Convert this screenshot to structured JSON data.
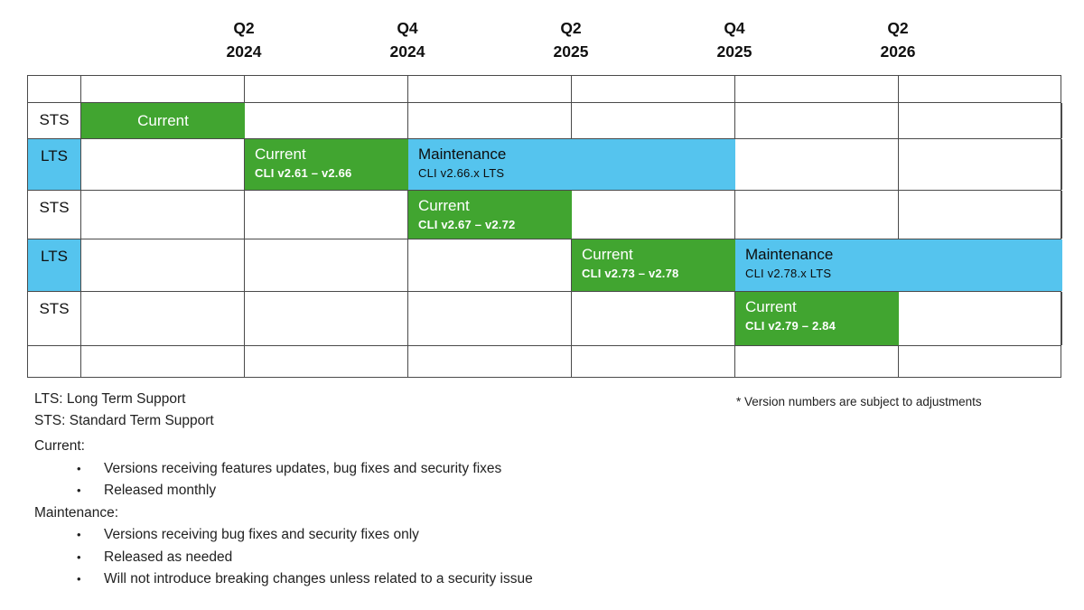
{
  "colors": {
    "current_green": "#41A530",
    "maintenance_blue": "#55C4EE",
    "grid_line": "#4a4a4a"
  },
  "timeline": {
    "quarters": [
      {
        "quarter": "Q2",
        "year": "2024"
      },
      {
        "quarter": "Q4",
        "year": "2024"
      },
      {
        "quarter": "Q2",
        "year": "2025"
      },
      {
        "quarter": "Q4",
        "year": "2025"
      },
      {
        "quarter": "Q2",
        "year": "2026"
      }
    ],
    "rows": [
      {
        "label": "",
        "kind": "spacer",
        "bars": []
      },
      {
        "label": "STS",
        "kind": "sts",
        "bars": [
          {
            "title": "Current",
            "subtitle": "",
            "phase": "current",
            "col_start": 1,
            "col_span": 1,
            "align": "center"
          }
        ]
      },
      {
        "label": "LTS",
        "kind": "lts",
        "bars": [
          {
            "title": "Current",
            "subtitle": "CLI v2.61 – v2.66",
            "phase": "current",
            "col_start": 2,
            "col_span": 1,
            "align": "left"
          },
          {
            "title": "Maintenance",
            "subtitle": "CLI v2.66.x LTS",
            "phase": "maintenance",
            "col_start": 3,
            "col_span": 2,
            "align": "left"
          }
        ]
      },
      {
        "label": "STS",
        "kind": "sts",
        "bars": [
          {
            "title": "Current",
            "subtitle": "CLI v2.67 – v2.72",
            "phase": "current",
            "col_start": 3,
            "col_span": 1,
            "align": "left"
          }
        ]
      },
      {
        "label": "LTS",
        "kind": "lts",
        "bars": [
          {
            "title": "Current",
            "subtitle": "CLI v2.73 – v2.78",
            "phase": "current",
            "col_start": 4,
            "col_span": 1,
            "align": "left"
          },
          {
            "title": "Maintenance",
            "subtitle": "CLI v2.78.x LTS",
            "phase": "maintenance",
            "col_start": 5,
            "col_span": 2,
            "align": "left"
          }
        ]
      },
      {
        "label": "STS",
        "kind": "sts",
        "bars": [
          {
            "title": "Current",
            "subtitle": "CLI v2.79 – 2.84",
            "phase": "current",
            "col_start": 5,
            "col_span": 1,
            "align": "left"
          }
        ]
      },
      {
        "label": "",
        "kind": "spacer",
        "bars": []
      }
    ]
  },
  "legend": {
    "lts_definition": "LTS: Long Term Support",
    "sts_definition": "STS: Standard Term Support",
    "footnote": "* Version numbers are subject to adjustments",
    "sections": [
      {
        "heading": "Current:",
        "bullets": [
          "Versions receiving features updates, bug fixes and security fixes",
          "Released monthly"
        ]
      },
      {
        "heading": "Maintenance:",
        "bullets": [
          "Versions receiving bug fixes and security fixes only",
          "Released as needed",
          "Will not introduce breaking changes unless related to a security issue"
        ]
      }
    ]
  },
  "chart_data": {
    "type": "table",
    "subtype": "gantt-support-timeline",
    "x_ticks": [
      "Q2 2024",
      "Q4 2024",
      "Q2 2025",
      "Q4 2025",
      "Q2 2026"
    ],
    "tracks": [
      "STS",
      "LTS",
      "STS",
      "LTS",
      "STS"
    ],
    "bars": [
      {
        "track_row": 1,
        "track": "STS",
        "phase": "Current",
        "versions": "",
        "start": "pre-Q2 2024 (table start)",
        "end": "Q2 2024"
      },
      {
        "track_row": 2,
        "track": "LTS",
        "phase": "Current",
        "versions": "CLI v2.61 – v2.66",
        "start": "Q2 2024",
        "end": "Q4 2024"
      },
      {
        "track_row": 2,
        "track": "LTS",
        "phase": "Maintenance",
        "versions": "CLI v2.66.x LTS",
        "start": "Q4 2024",
        "end": "Q4 2025"
      },
      {
        "track_row": 3,
        "track": "STS",
        "phase": "Current",
        "versions": "CLI v2.67 – v2.72",
        "start": "Q4 2024",
        "end": "Q2 2025"
      },
      {
        "track_row": 4,
        "track": "LTS",
        "phase": "Current",
        "versions": "CLI v2.73 – v2.78",
        "start": "Q2 2025",
        "end": "Q4 2025"
      },
      {
        "track_row": 4,
        "track": "LTS",
        "phase": "Maintenance",
        "versions": "CLI v2.78.x LTS",
        "start": "Q4 2025",
        "end": "post-Q2 2026 (table end)"
      },
      {
        "track_row": 5,
        "track": "STS",
        "phase": "Current",
        "versions": "CLI v2.79 – 2.84",
        "start": "Q4 2025",
        "end": "Q2 2026"
      }
    ],
    "legend_colors": {
      "Current": "#41A530",
      "Maintenance": "#55C4EE"
    },
    "grid": true,
    "notes": "Quarter tick labels sit on internal gridlines; each grid column spans two quarters."
  }
}
